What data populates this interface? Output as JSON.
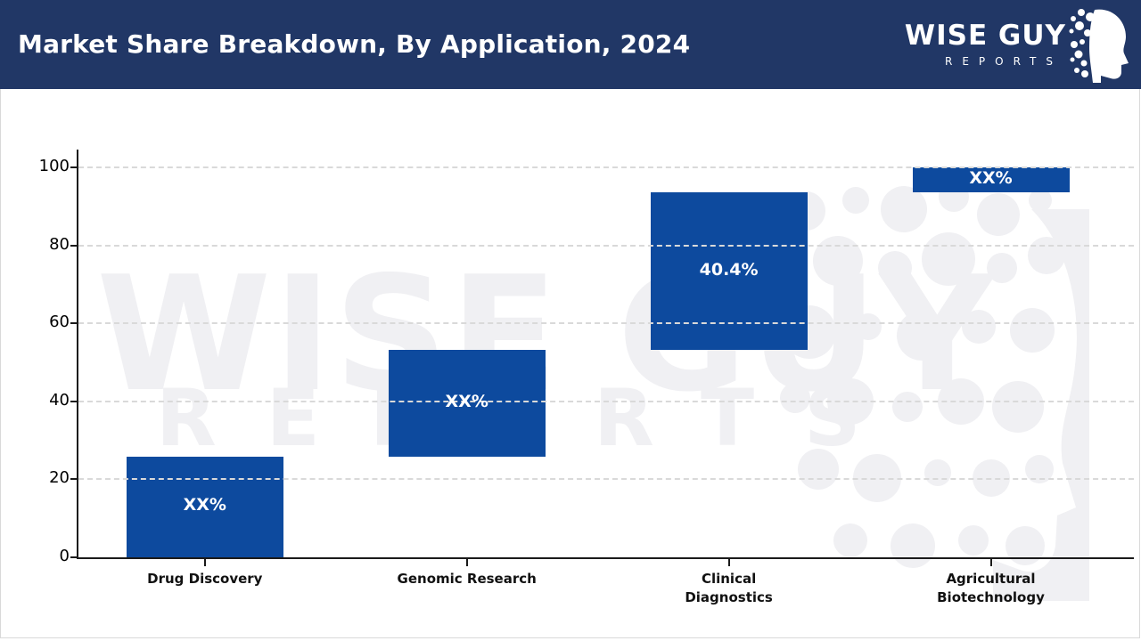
{
  "header": {
    "title": "Market Share Breakdown, By Application, 2024",
    "logo": {
      "name": "WISE GUY",
      "tagline": "REPORTS"
    }
  },
  "watermark": {
    "line1": "WISE GUY",
    "line2": "REPORTS"
  },
  "colors": {
    "header_bg": "#213766",
    "bar": "#0d4a9e",
    "grid": "#d9d9d9",
    "axis": "#1a1a1a",
    "watermark": "#f0f0f3"
  },
  "chart_data": {
    "type": "bar",
    "subtype": "waterfall",
    "title": "Market Share Breakdown, By Application, 2024",
    "xlabel": "",
    "ylabel": "",
    "ylim": [
      0,
      100
    ],
    "yticks": [
      0,
      20,
      40,
      60,
      80,
      100
    ],
    "grid": "horizontal-dashed",
    "legend": "none",
    "categories": [
      "Drug Discovery",
      "Genomic Research",
      "Clinical Diagnostics",
      "Agricultural Biotechnology"
    ],
    "category_lines": [
      [
        "Drug Discovery"
      ],
      [
        "Genomic Research"
      ],
      [
        "Clinical",
        "Diagnostics"
      ],
      [
        "Agricultural",
        "Biotechnology"
      ]
    ],
    "segments": [
      {
        "category": "Drug Discovery",
        "start": 0,
        "end": 25.8,
        "value": 25.8,
        "label": "XX%"
      },
      {
        "category": "Genomic Research",
        "start": 25.8,
        "end": 53.2,
        "value": 27.4,
        "label": "XX%"
      },
      {
        "category": "Clinical Diagnostics",
        "start": 53.2,
        "end": 93.6,
        "value": 40.4,
        "label": "40.4%"
      },
      {
        "category": "Agricultural Biotechnology",
        "start": 93.6,
        "end": 100,
        "value": 6.4,
        "label": "XX%"
      }
    ]
  }
}
